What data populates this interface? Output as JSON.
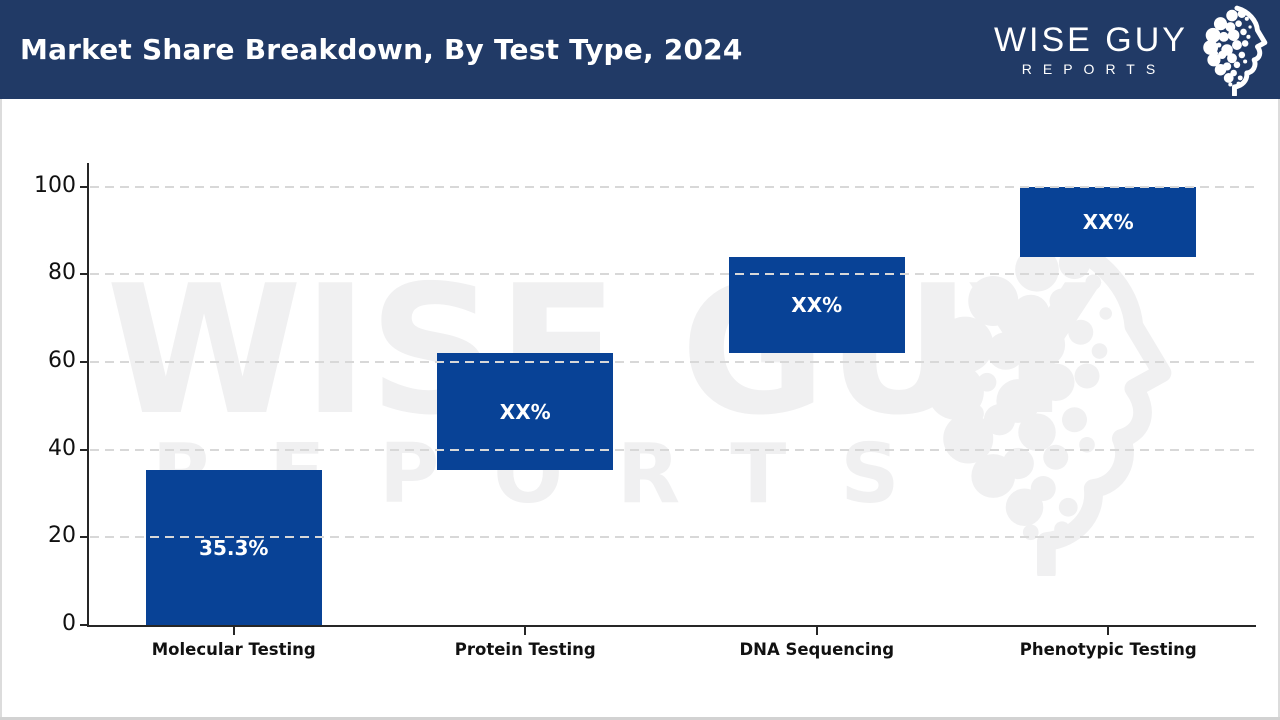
{
  "header": {
    "title": "Market Share Breakdown, By Test Type, 2024",
    "logo": {
      "primary": "WISE GUY",
      "secondary": "REPORTS"
    }
  },
  "watermark": {
    "primary": "WISE GUY",
    "secondary": "REPORTS"
  },
  "colors": {
    "header_bg": "#213A66",
    "bar": "#084296",
    "bar_label": "#FFFFFF",
    "grid": "#D8D8D8",
    "axis": "#262626",
    "watermark": "#F0F0F1"
  },
  "chart_data": {
    "type": "bar",
    "subtype": "waterfall",
    "title": "Market Share Breakdown, By Test Type, 2024",
    "categories": [
      "Molecular Testing",
      "Protein Testing",
      "DNA Sequencing",
      "Phenotypic Testing"
    ],
    "segments": [
      {
        "category": "Molecular Testing",
        "start": 0,
        "end": 35.3,
        "label": "35.3%"
      },
      {
        "category": "Protein Testing",
        "start": 35.3,
        "end": 62,
        "label": "XX%"
      },
      {
        "category": "DNA Sequencing",
        "start": 62,
        "end": 84,
        "label": "XX%"
      },
      {
        "category": "Phenotypic Testing",
        "start": 84,
        "end": 100,
        "label": "XX%"
      }
    ],
    "ylim": [
      0,
      100
    ],
    "yticks": [
      0,
      20,
      40,
      60,
      80,
      100
    ],
    "grid": "horizontal-dashed",
    "legend": "none",
    "xlabel": "",
    "ylabel": ""
  }
}
